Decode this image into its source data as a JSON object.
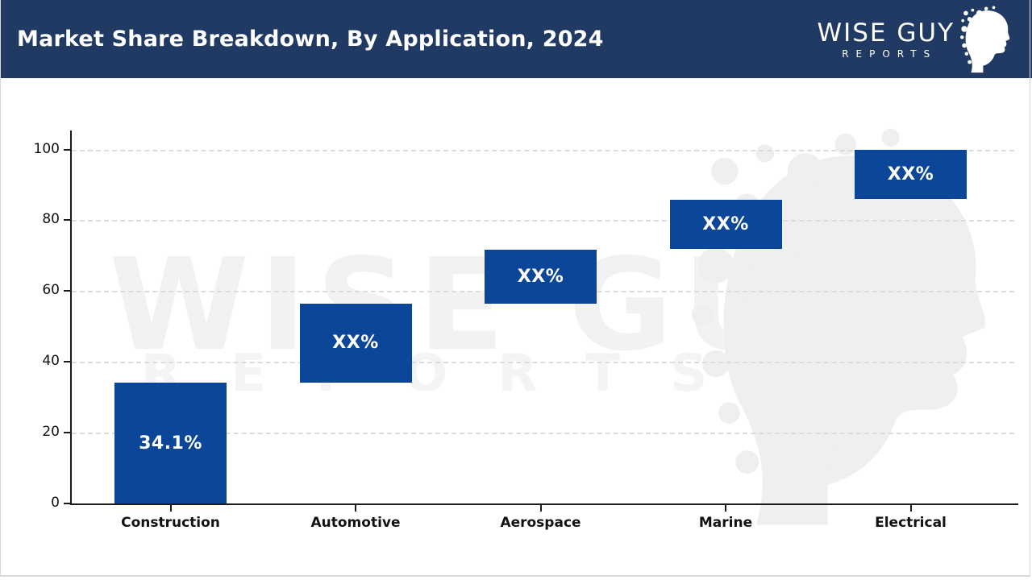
{
  "header": {
    "title": "Market Share Breakdown, By Application, 2024",
    "logo": {
      "line1": "WISE GUY",
      "line2": "REPORTS",
      "face_icon": "dotted-head-profile"
    }
  },
  "watermark": {
    "line1": "WISE GUY",
    "line2": "REPORTS",
    "face_icon": "dotted-head-profile"
  },
  "colors": {
    "header_bg": "#203a64",
    "bar": "#0b4699",
    "bar_label": "#ffffff",
    "axis": "#1a1a1a",
    "gridline": "#dcdcdc",
    "watermark": "#f2f2f2"
  },
  "chart_data": {
    "type": "bar",
    "variant": "waterfall",
    "title": "Market Share Breakdown, By Application, 2024",
    "categories": [
      "Construction",
      "Automotive",
      "Aerospace",
      "Marine",
      "Electrical"
    ],
    "segments": [
      {
        "category": "Construction",
        "start": 0,
        "end": 34.1,
        "label": "34.1%"
      },
      {
        "category": "Automotive",
        "start": 34.1,
        "end": 56.5,
        "label": "XX%"
      },
      {
        "category": "Aerospace",
        "start": 56.5,
        "end": 71.7,
        "label": "XX%"
      },
      {
        "category": "Marine",
        "start": 71.9,
        "end": 85.8,
        "label": "XX%"
      },
      {
        "category": "Electrical",
        "start": 85.9,
        "end": 100,
        "label": "XX%"
      }
    ],
    "y_ticks": [
      0,
      20,
      40,
      60,
      80,
      100
    ],
    "ylim": [
      0,
      105
    ],
    "xlabel": "",
    "ylabel": "",
    "grid": "horizontal-dashed",
    "legend": "none",
    "bar_color": "#0b4699",
    "label_color": "#ffffff"
  }
}
